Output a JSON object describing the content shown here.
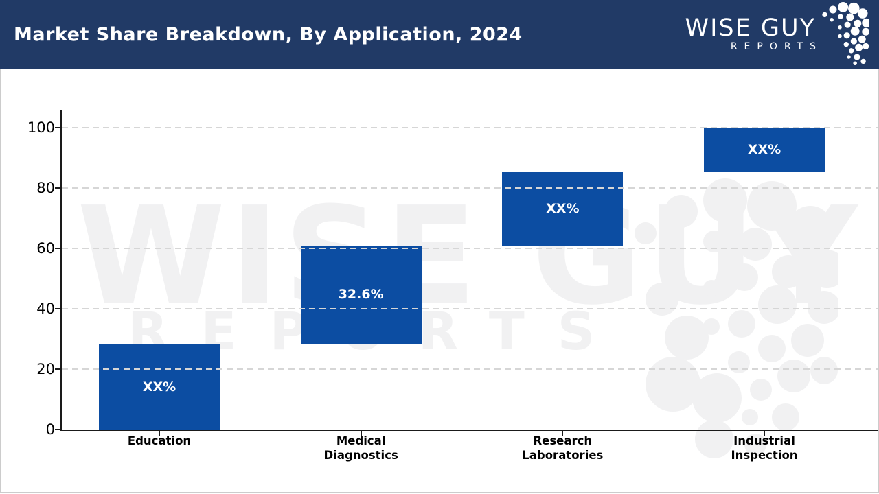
{
  "header": {
    "title": "Market Share Breakdown, By Application, 2024",
    "logo_line1": "WISE GUY",
    "logo_line2": "REPORTS",
    "background_color": "#213A66"
  },
  "watermark": {
    "line1": "WISE GUY",
    "line2": "REPORTS",
    "color": "#f1f1f2"
  },
  "chart_data": {
    "type": "waterfall",
    "title": "Market Share Breakdown, By Application, 2024",
    "categories": [
      "Education",
      "Medical Diagnostics",
      "Research Laboratories",
      "Industrial Inspection"
    ],
    "segments": [
      {
        "category": "Education",
        "start": 0,
        "end": 28.4,
        "value": 28.4,
        "label": "XX%"
      },
      {
        "category": "Medical Diagnostics",
        "start": 28.4,
        "end": 61.0,
        "value": 32.6,
        "label": "32.6%"
      },
      {
        "category": "Research Laboratories",
        "start": 61.0,
        "end": 85.5,
        "value": 24.5,
        "label": "XX%"
      },
      {
        "category": "Industrial Inspection",
        "start": 85.5,
        "end": 100,
        "value": 14.5,
        "label": "XX%"
      }
    ],
    "y_ticks": [
      0,
      20,
      40,
      60,
      80,
      100
    ],
    "ylim": [
      0,
      105.9
    ],
    "xlabel": "",
    "ylabel": "",
    "bar_color": "#0C4DA2",
    "bar_label_color": "#ffffff",
    "grid": true,
    "gridline_style": "dashed",
    "gridline_color": "#d6d6d6",
    "legend": "none"
  }
}
